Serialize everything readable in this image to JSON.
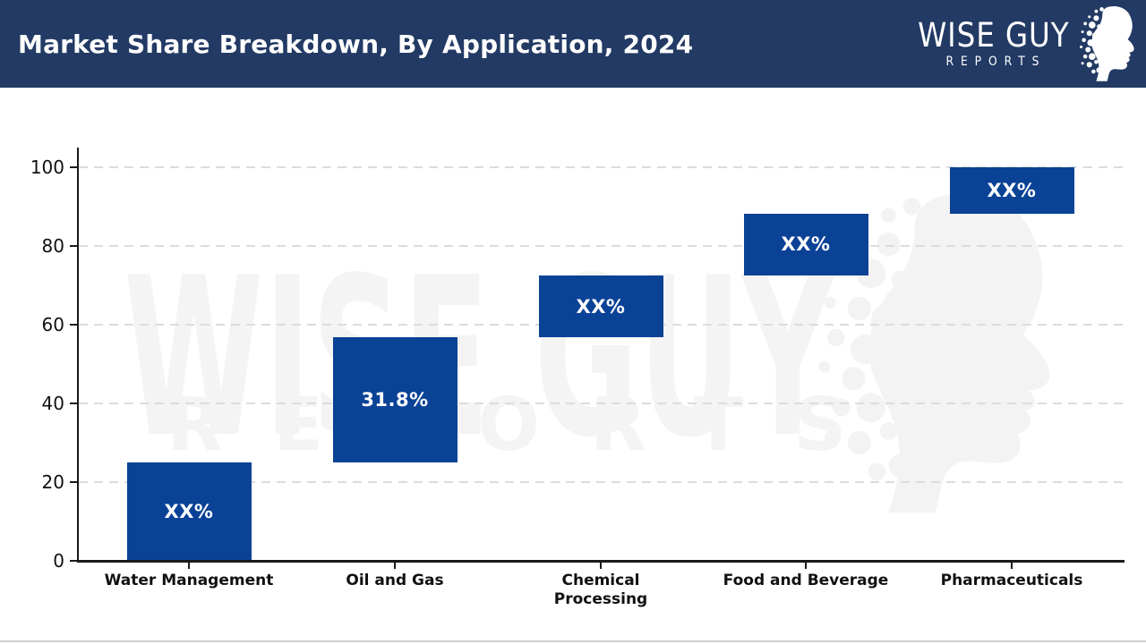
{
  "header": {
    "title": "Market Share Breakdown, By Application, 2024",
    "logo": {
      "line1": "WISE GUY",
      "line2": "REPORTS"
    }
  },
  "watermark": {
    "line1": "WISE GUY",
    "line2": "REPORTS"
  },
  "colors": {
    "header_bg": "#223a64",
    "bar": "#0a4296",
    "grid": "#dcdcdc",
    "axis": "#1a1a1a",
    "watermark": "#f3f3f3"
  },
  "chart_data": {
    "type": "bar",
    "subtype": "waterfall",
    "title": "Market Share Breakdown, By Application, 2024",
    "categories": [
      "Water Management",
      "Oil and Gas",
      "Chemical\nProcessing",
      "Food and Beverage",
      "Pharmaceuticals"
    ],
    "segments": [
      {
        "category": "Water Management",
        "start": 0,
        "end": 25,
        "label": "XX%"
      },
      {
        "category": "Oil and Gas",
        "start": 25,
        "end": 56.8,
        "label": "31.8%"
      },
      {
        "category": "Chemical Processing",
        "start": 56.8,
        "end": 72.5,
        "label": "XX%"
      },
      {
        "category": "Food and Beverage",
        "start": 72.5,
        "end": 88.2,
        "label": "XX%"
      },
      {
        "category": "Pharmaceuticals",
        "start": 88.2,
        "end": 100,
        "label": "XX%"
      }
    ],
    "yticks": [
      0,
      20,
      40,
      60,
      80,
      100
    ],
    "ylim": [
      0,
      105
    ],
    "xlabel": "",
    "ylabel": "",
    "legend": "none",
    "grid": "horizontal-dashed"
  }
}
